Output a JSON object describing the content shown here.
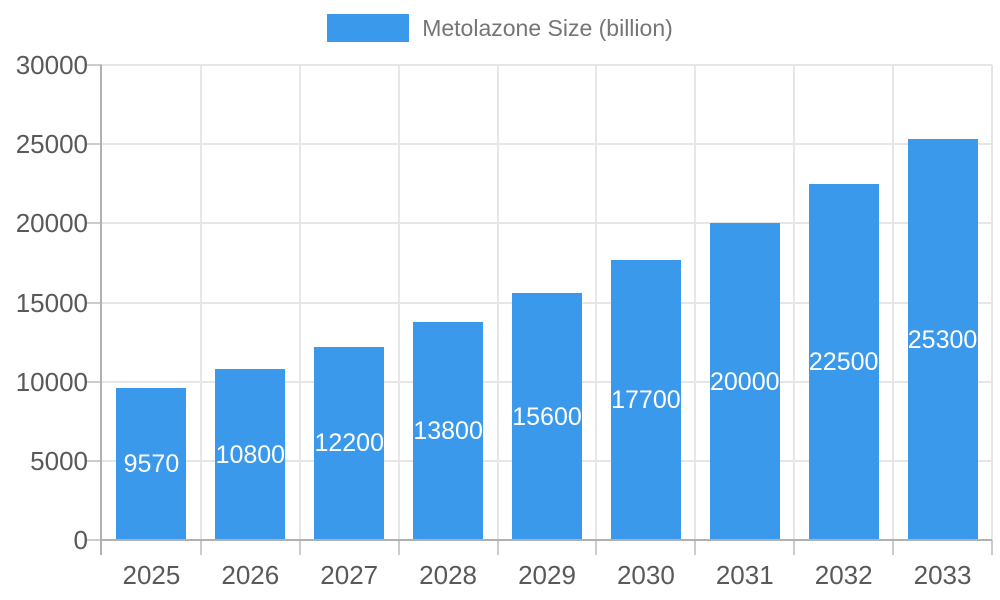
{
  "legend": {
    "swatch_icon": "series-color-swatch",
    "label": "Metolazone Size (billion)"
  },
  "colors": {
    "bar": "#3B99EC",
    "value_label": "#FFFFFF",
    "grid_line": "#E6E6E6",
    "tick_mark": "#CCCCCC",
    "axis_line": "#B0B0B0",
    "tick_text": "#595959",
    "legend_text": "#757575",
    "background": "#FFFFFF"
  },
  "chart_data": {
    "type": "bar",
    "title": "Metolazone Size (billion)",
    "categories": [
      "2025",
      "2026",
      "2027",
      "2028",
      "2029",
      "2030",
      "2031",
      "2032",
      "2033"
    ],
    "series": [
      {
        "name": "Metolazone Size (billion)",
        "values": [
          9570,
          10800,
          12200,
          13800,
          15600,
          17700,
          20000,
          22500,
          25300
        ]
      }
    ],
    "xlabel": "",
    "ylabel": "",
    "ylim": [
      0,
      30000
    ],
    "ytick_step": 5000,
    "ytick_labels": [
      "0",
      "5000",
      "10000",
      "15000",
      "20000",
      "25000",
      "30000"
    ],
    "grid": true,
    "legend_position": "top-center",
    "value_label_position": "inside-center"
  }
}
